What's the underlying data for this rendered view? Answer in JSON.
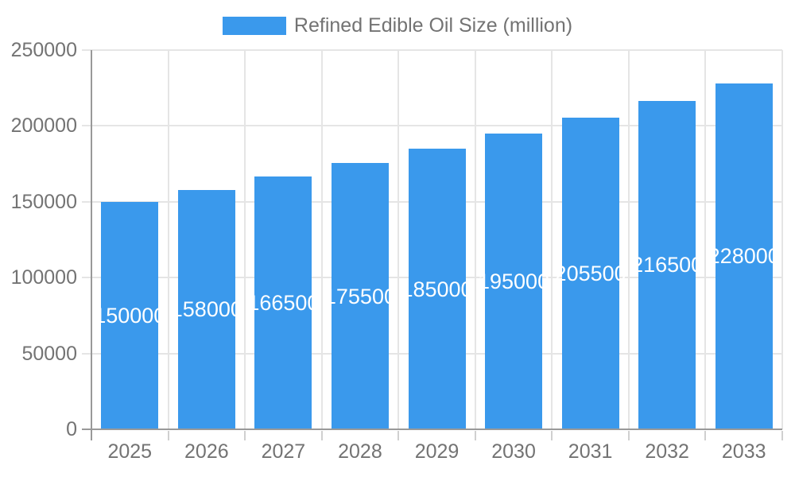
{
  "chart_data": {
    "type": "bar",
    "legend": "Refined Edible Oil Size (million)",
    "legend_position": "top",
    "categories": [
      "2025",
      "2026",
      "2027",
      "2028",
      "2029",
      "2030",
      "2031",
      "2032",
      "2033"
    ],
    "series": [
      {
        "name": "Refined Edible Oil Size (million)",
        "values": [
          150000,
          158000,
          166500,
          175500,
          185000,
          195000,
          205500,
          216500,
          228000
        ]
      }
    ],
    "value_labels": [
      "150000",
      "158000",
      "166500",
      "175500",
      "185000",
      "195000",
      "205500",
      "216500",
      "228000"
    ],
    "ylim": [
      0,
      250000
    ],
    "yticks": [
      0,
      50000,
      100000,
      150000,
      200000,
      250000
    ],
    "ytick_labels": [
      "0",
      "50000",
      "100000",
      "150000",
      "200000",
      "250000"
    ],
    "grid": true,
    "xlabel": "",
    "ylabel": ""
  },
  "colors": {
    "bar": "#3a99ec",
    "bar_label": "#ffffff",
    "gridline": "#e5e5e5",
    "axis_line": "#999999",
    "tick_mark": "#d0d0d0",
    "text": "#737373",
    "background": "#ffffff"
  }
}
